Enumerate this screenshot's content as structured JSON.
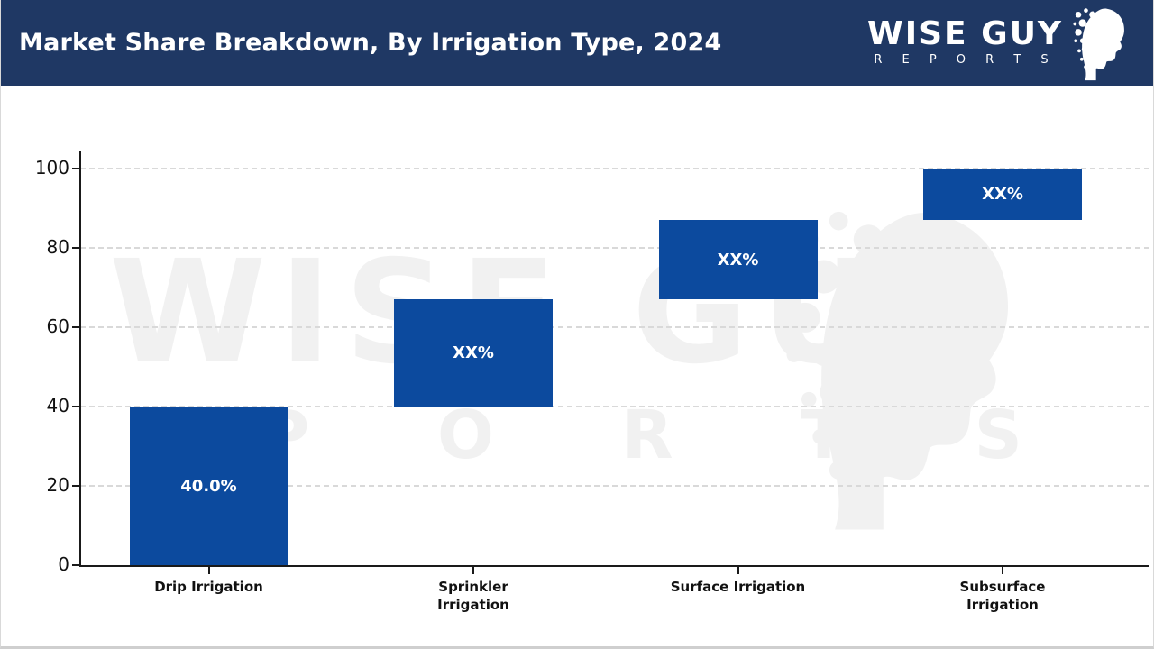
{
  "header": {
    "title": "Market Share Breakdown, By Irrigation Type, 2024",
    "logo": {
      "brand_line1": "WISE GUY",
      "brand_line2": "R E P O R T S"
    }
  },
  "watermark": {
    "line1": "WISE GUY",
    "line2": "P O R T S"
  },
  "chart_data": {
    "type": "bar",
    "subtype": "waterfall",
    "title": "Market Share Breakdown, By Irrigation Type, 2024",
    "categories": [
      "Drip Irrigation",
      "Sprinkler\nIrrigation",
      "Surface Irrigation",
      "Subsurface\nIrrigation"
    ],
    "bars": [
      {
        "category": "Drip Irrigation",
        "start": 0,
        "end": 40,
        "label": "40.0%"
      },
      {
        "category": "Sprinkler Irrigation",
        "start": 40,
        "end": 67,
        "label": "XX%"
      },
      {
        "category": "Surface Irrigation",
        "start": 67,
        "end": 87,
        "label": "XX%"
      },
      {
        "category": "Subsurface Irrigation",
        "start": 87,
        "end": 100,
        "label": "XX%"
      }
    ],
    "yticks": [
      0,
      20,
      40,
      60,
      80,
      100
    ],
    "ylim": [
      0,
      104
    ],
    "xlabel": "",
    "ylabel": "",
    "grid": "horizontal-dashed",
    "legend": "none",
    "colors": {
      "bar": "#0c4a9e",
      "bar_label": "#ffffff",
      "header_bg": "#1f3864",
      "axis": "#1a1a1a",
      "grid": "#d9d9d9",
      "watermark": "#f1f1f1"
    }
  }
}
